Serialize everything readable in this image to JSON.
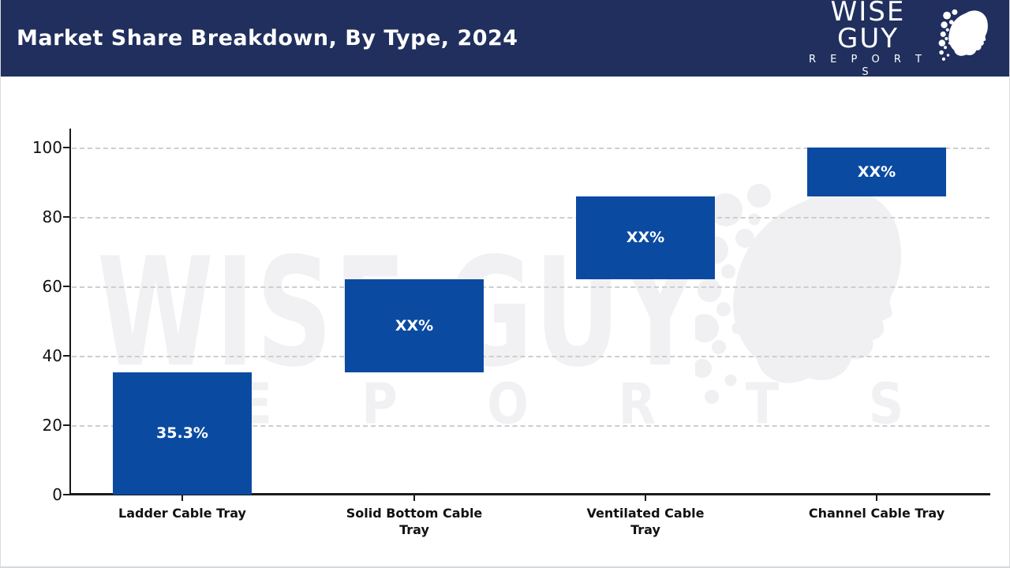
{
  "header": {
    "title": "Market Share Breakdown, By Type, 2024",
    "logo": {
      "line1": "WISE GUY",
      "line2": "R E P O R T S"
    }
  },
  "watermark": {
    "line1": "WISE GUY",
    "line2": "R E P O R T S"
  },
  "chart_data": {
    "type": "bar",
    "subtype": "waterfall",
    "title": "Market Share Breakdown, By Type, 2024",
    "categories": [
      "Ladder Cable Tray",
      "Solid Bottom Cable Tray",
      "Ventilated Cable Tray",
      "Channel Cable Tray"
    ],
    "segments": [
      {
        "category": "Ladder Cable Tray",
        "start": 0,
        "end": 35.3,
        "value_label": "35.3%"
      },
      {
        "category": "Solid Bottom Cable Tray",
        "start": 35.3,
        "end": 62,
        "value_label": "XX%"
      },
      {
        "category": "Ventilated Cable Tray",
        "start": 62,
        "end": 86,
        "value_label": "XX%"
      },
      {
        "category": "Channel Cable Tray",
        "start": 86,
        "end": 100,
        "value_label": "XX%"
      }
    ],
    "y_ticks": [
      0,
      20,
      40,
      60,
      80,
      100
    ],
    "ylim": [
      0,
      105
    ],
    "xlabel": "",
    "ylabel": "",
    "grid": "horizontal-dashed",
    "legend": "none",
    "bar_color": "#0b4aa1",
    "value_label_color": "#ffffff"
  },
  "colors": {
    "header_bg": "#202f5d",
    "bar": "#0b4aa1",
    "grid": "#cecece",
    "axis": "#1a1a1a",
    "watermark": "#f1f1f4"
  }
}
